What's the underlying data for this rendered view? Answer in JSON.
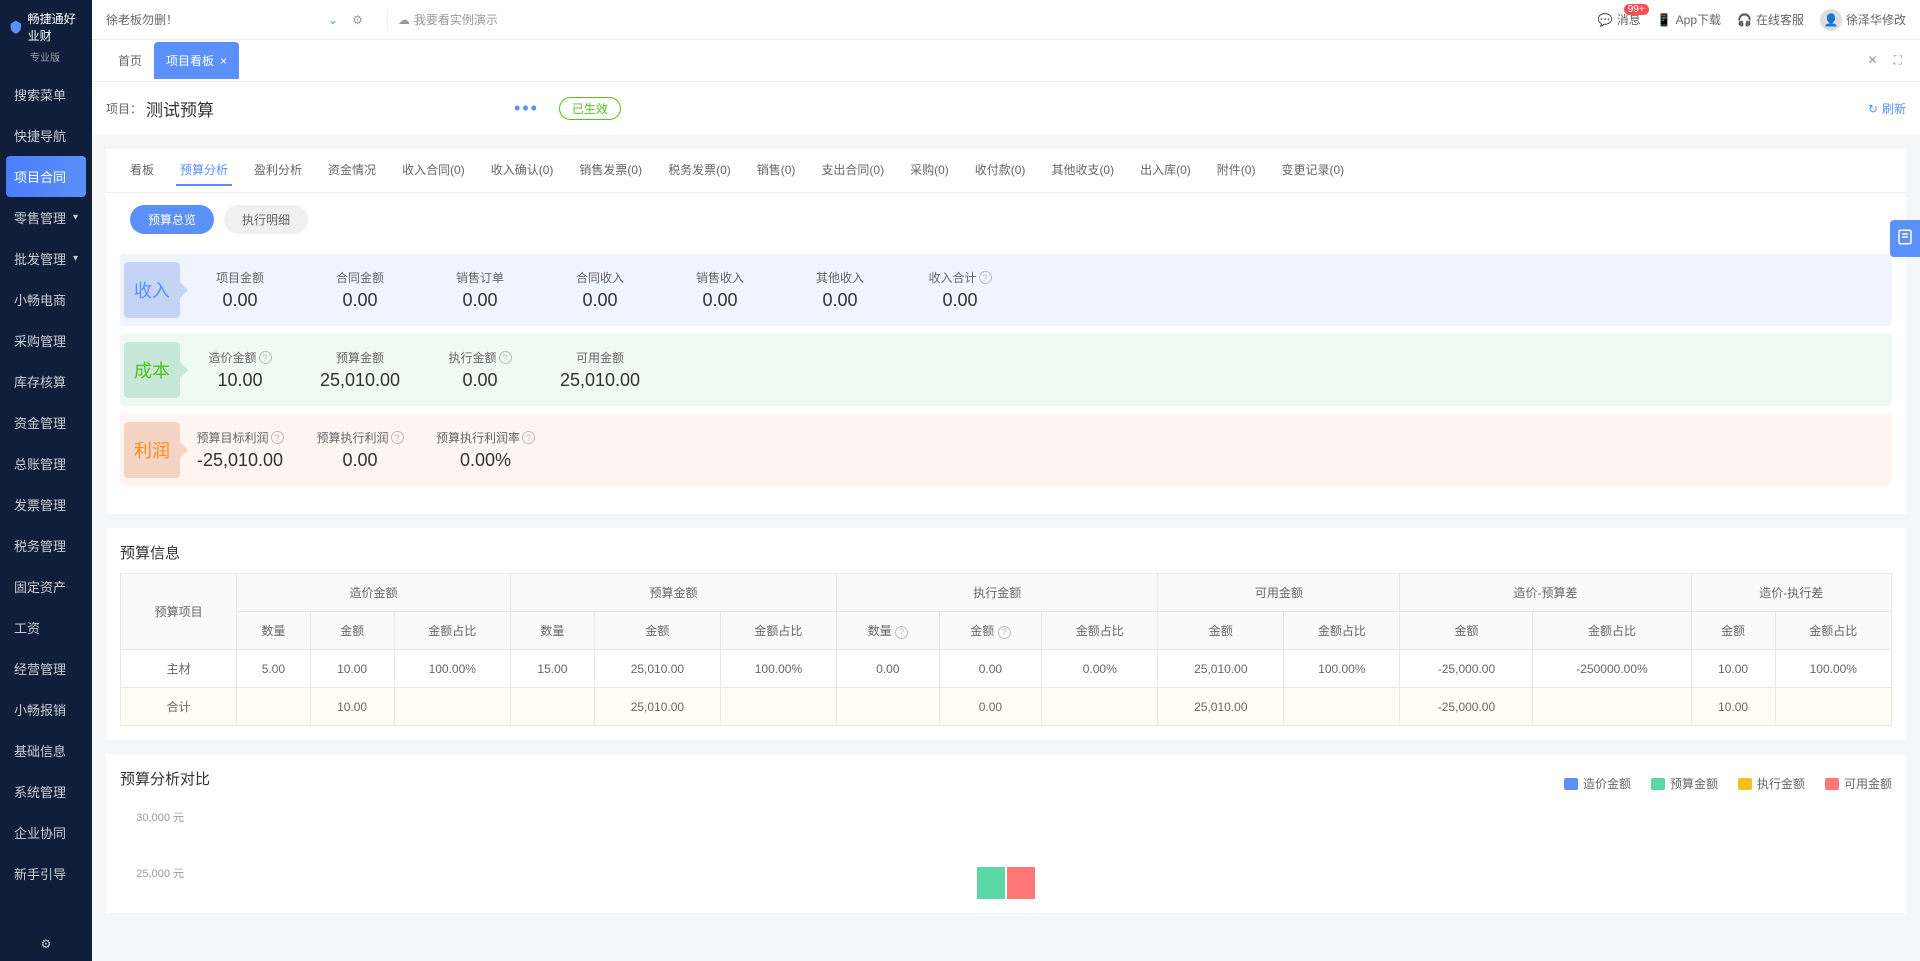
{
  "app": {
    "logoText": "畅捷通好业财",
    "logoSubtitle": "专业版"
  },
  "sidebar": {
    "items": [
      {
        "label": "搜索菜单",
        "hasCaret": false
      },
      {
        "label": "快捷导航",
        "hasCaret": false
      },
      {
        "label": "项目合同",
        "hasCaret": false,
        "active": true
      },
      {
        "label": "零售管理",
        "hasCaret": true
      },
      {
        "label": "批发管理",
        "hasCaret": true
      },
      {
        "label": "小畅电商",
        "hasCaret": false
      },
      {
        "label": "采购管理",
        "hasCaret": false
      },
      {
        "label": "库存核算",
        "hasCaret": false
      },
      {
        "label": "资金管理",
        "hasCaret": false
      },
      {
        "label": "总账管理",
        "hasCaret": false
      },
      {
        "label": "发票管理",
        "hasCaret": false
      },
      {
        "label": "税务管理",
        "hasCaret": false
      },
      {
        "label": "固定资产",
        "hasCaret": false
      },
      {
        "label": "工资",
        "hasCaret": false
      },
      {
        "label": "经营管理",
        "hasCaret": false
      },
      {
        "label": "小畅报销",
        "hasCaret": false
      },
      {
        "label": "基础信息",
        "hasCaret": false
      },
      {
        "label": "系统管理",
        "hasCaret": false
      },
      {
        "label": "企业协同",
        "hasCaret": false
      },
      {
        "label": "新手引导",
        "hasCaret": false
      }
    ]
  },
  "topbar": {
    "brand": "徐老板勿删！",
    "demoLink": "我要看实例演示",
    "message": "消息",
    "messageBadge": "99+",
    "appDownload": "App下载",
    "onlineService": "在线客服",
    "userName": "徐泽华修改"
  },
  "tabs": {
    "home": "首页",
    "active": "项目看板"
  },
  "page": {
    "titleLabel": "项目：",
    "title": "测试预算",
    "status": "已生效",
    "refresh": "刷新"
  },
  "subtabs": [
    "看板",
    "预算分析",
    "盈利分析",
    "资金情况",
    "收入合同(0)",
    "收入确认(0)",
    "销售发票(0)",
    "税务发票(0)",
    "销售(0)",
    "支出合同(0)",
    "采购(0)",
    "收付款(0)",
    "其他收支(0)",
    "出入库(0)",
    "附件(0)",
    "变更记录(0)"
  ],
  "pills": {
    "overview": "预算总览",
    "detail": "执行明细"
  },
  "stats": {
    "income": {
      "label": "收入",
      "items": [
        {
          "label": "项目金额",
          "value": "0.00"
        },
        {
          "label": "合同金额",
          "value": "0.00"
        },
        {
          "label": "销售订单",
          "value": "0.00"
        },
        {
          "label": "合同收入",
          "value": "0.00"
        },
        {
          "label": "销售收入",
          "value": "0.00"
        },
        {
          "label": "其他收入",
          "value": "0.00"
        },
        {
          "label": "收入合计",
          "value": "0.00",
          "help": true
        }
      ]
    },
    "cost": {
      "label": "成本",
      "items": [
        {
          "label": "造价金额",
          "value": "10.00",
          "help": true
        },
        {
          "label": "预算金额",
          "value": "25,010.00"
        },
        {
          "label": "执行金额",
          "value": "0.00",
          "help": true
        },
        {
          "label": "可用金额",
          "value": "25,010.00"
        }
      ]
    },
    "profit": {
      "label": "利润",
      "items": [
        {
          "label": "预算目标利润",
          "value": "-25,010.00",
          "help": true
        },
        {
          "label": "预算执行利润",
          "value": "0.00",
          "help": true
        },
        {
          "label": "预算执行利润率",
          "value": "0.00%",
          "help": true
        }
      ]
    }
  },
  "budgetInfo": {
    "title": "预算信息",
    "headers": {
      "item": "预算项目",
      "cost": "造价金额",
      "budget": "预算金额",
      "exec": "执行金额",
      "avail": "可用金额",
      "diff1": "造价-预算差",
      "diff2": "造价-执行差",
      "qty": "数量",
      "amount": "金额",
      "ratio": "金额占比"
    },
    "rows": [
      {
        "name": "主材",
        "cQty": "5.00",
        "cAmt": "10.00",
        "cRatio": "100.00%",
        "bQty": "15.00",
        "bAmt": "25,010.00",
        "bRatio": "100.00%",
        "eQty": "0.00",
        "eAmt": "0.00",
        "eRatio": "0.00%",
        "aAmt": "25,010.00",
        "aRatio": "100.00%",
        "d1Amt": "-25,000.00",
        "d1Ratio": "-250000.00%",
        "d2Amt": "10.00",
        "d2Ratio": "100.00%",
        "d2Red": true
      }
    ],
    "total": {
      "name": "合计",
      "cAmt": "10.00",
      "bAmt": "25,010.00",
      "eAmt": "0.00",
      "aAmt": "25,010.00",
      "d1Amt": "-25,000.00",
      "d2Amt": "10.00"
    }
  },
  "chart": {
    "title": "预算分析对比",
    "legend": [
      {
        "label": "造价金额",
        "color": "#5b8ff9"
      },
      {
        "label": "预算金额",
        "color": "#5ad8a6"
      },
      {
        "label": "执行金额",
        "color": "#f6c022"
      },
      {
        "label": "可用金额",
        "color": "#ff7875"
      }
    ],
    "yTicks": [
      "30,000 元",
      "25,000 元"
    ],
    "bars": [
      {
        "color": "#5ad8a6"
      },
      {
        "color": "#ff7875"
      }
    ]
  }
}
